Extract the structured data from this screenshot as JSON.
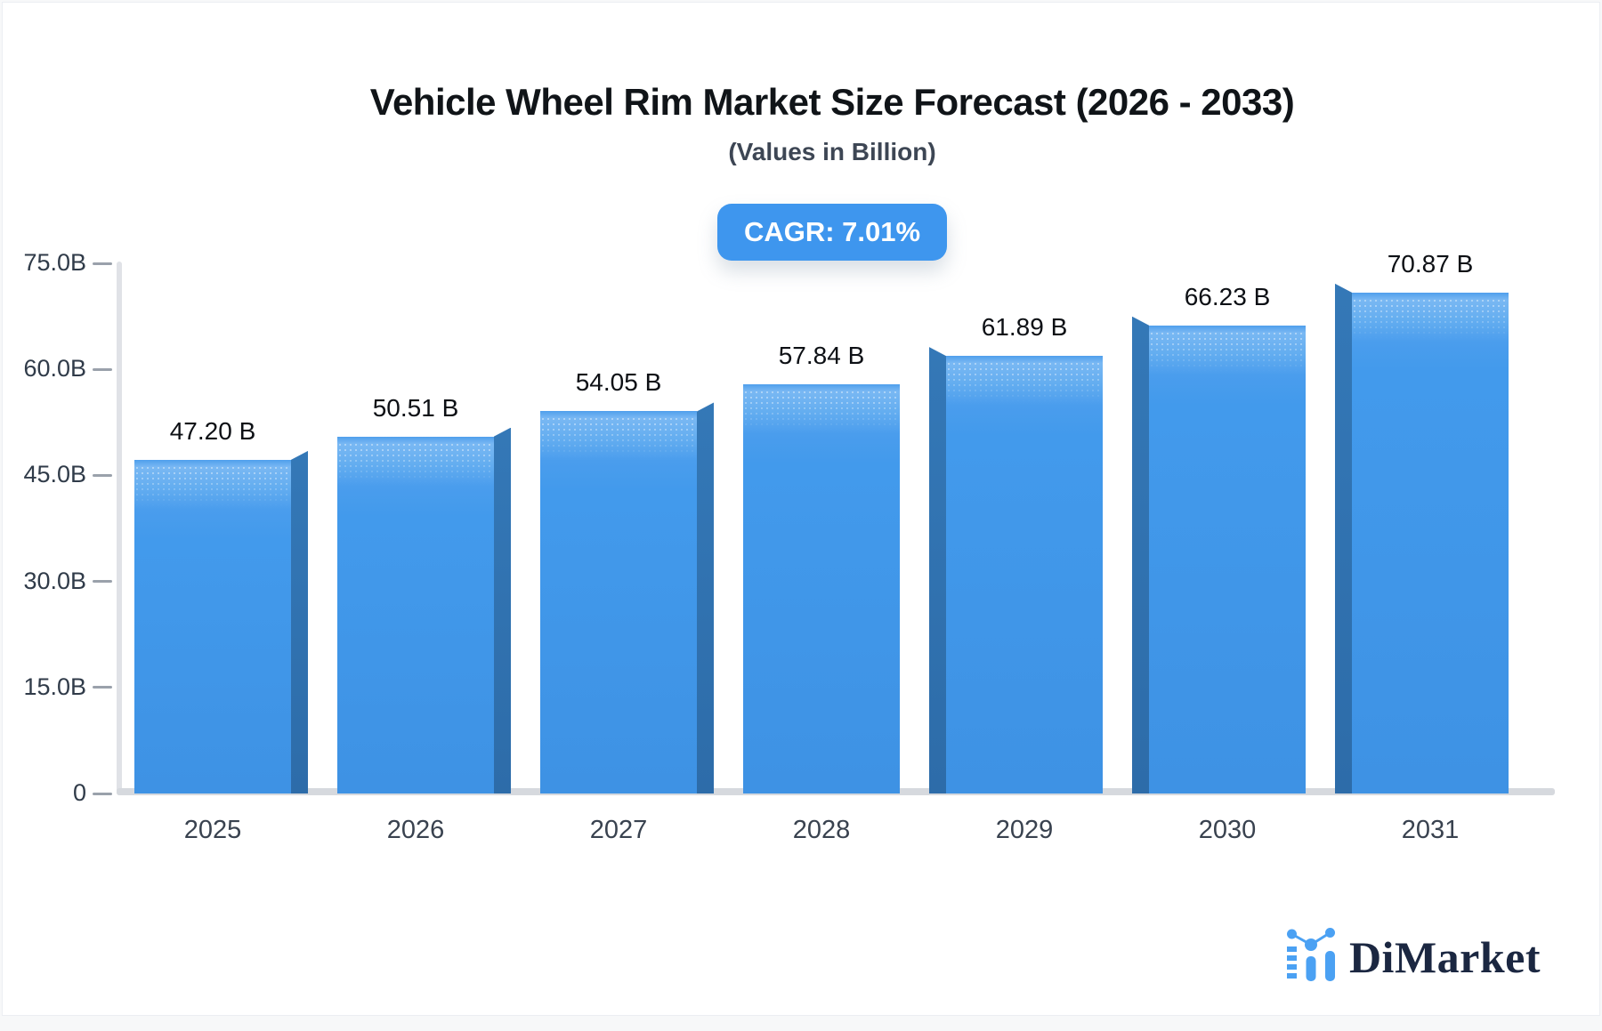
{
  "header": {
    "title": "Vehicle Wheel Rim Market Size Forecast (2026 - 2033)",
    "subtitle": "(Values in Billion)",
    "cagr_badge": "CAGR: 7.01%"
  },
  "chart_data": {
    "type": "bar",
    "title": "Vehicle Wheel Rim Market Size Forecast (2026 - 2033)",
    "subtitle": "(Values in Billion)",
    "cagr_percent": "7.01%",
    "categories": [
      "2025",
      "2026",
      "2027",
      "2028",
      "2029",
      "2030",
      "2031"
    ],
    "values": [
      47.2,
      50.51,
      54.05,
      57.84,
      61.89,
      66.23,
      70.87
    ],
    "bar_labels": [
      "47.20 B",
      "50.51 B",
      "54.05 B",
      "57.84 B",
      "61.89 B",
      "66.23 B",
      "70.87 B"
    ],
    "unit": "Billion",
    "ylim": [
      0,
      75
    ],
    "ytick_values": [
      75,
      60,
      45,
      30,
      15,
      0
    ],
    "ytick_labels": [
      "75.0B",
      "60.0B",
      "45.0B",
      "30.0B",
      "15.0B",
      "0"
    ],
    "grid": false,
    "legend_position": "none",
    "bar_color": "#4098EB",
    "bar_side_color": "#2F70AE",
    "style": "3d-extruded-columns"
  },
  "footer": {
    "brand": "DiMarket"
  },
  "colors": {
    "accent_blue": "#3E96EE",
    "bar_blue": "#4098EB",
    "bar_side_blue": "#2F70AE",
    "axis_gray": "#DDDFE4",
    "text_dark": "#101418",
    "logo_navy": "#1B2741",
    "logo_blue": "#4BA1F3"
  }
}
